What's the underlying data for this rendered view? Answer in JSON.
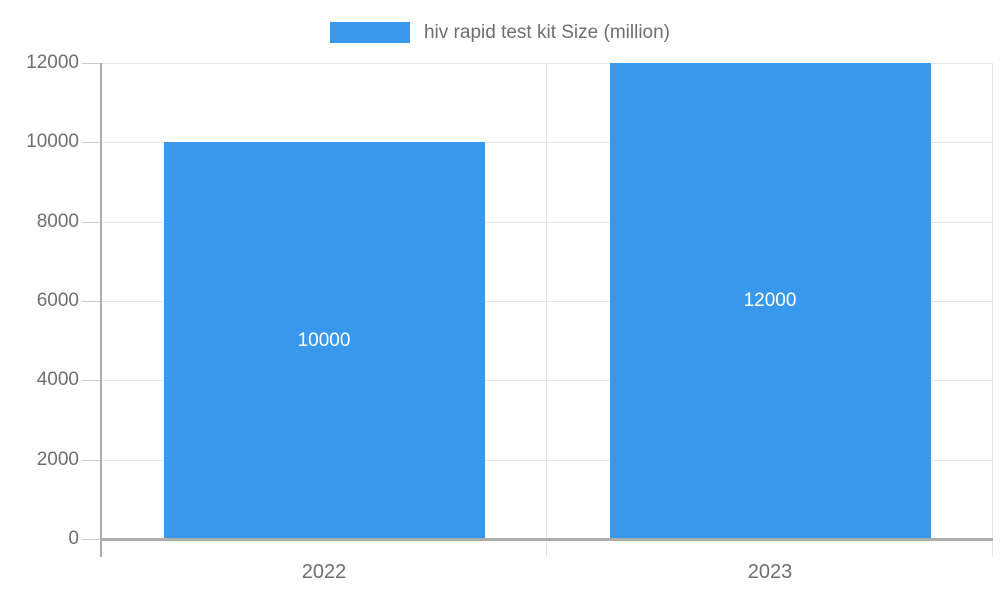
{
  "chart_data": {
    "type": "bar",
    "title": "",
    "legend": {
      "label": "hiv rapid test kit Size (million)",
      "position": "top"
    },
    "categories": [
      "2022",
      "2023"
    ],
    "series": [
      {
        "name": "hiv rapid test kit Size (million)",
        "values": [
          10000,
          12000
        ]
      }
    ],
    "bar_labels": [
      "10000",
      "12000"
    ],
    "xlabel": "",
    "ylabel": "",
    "ylim": [
      0,
      12000
    ],
    "ytick_interval": 2000,
    "yticks": [
      0,
      2000,
      4000,
      6000,
      8000,
      10000,
      12000
    ],
    "grid": true,
    "colors": {
      "bar": "#3898ec",
      "grid": "#e6e6e6",
      "axis": "#adadad",
      "tick": "#c9c9c9",
      "text": "#6f6f6f",
      "bar_label": "#ffffff",
      "background": "#ffffff"
    }
  }
}
